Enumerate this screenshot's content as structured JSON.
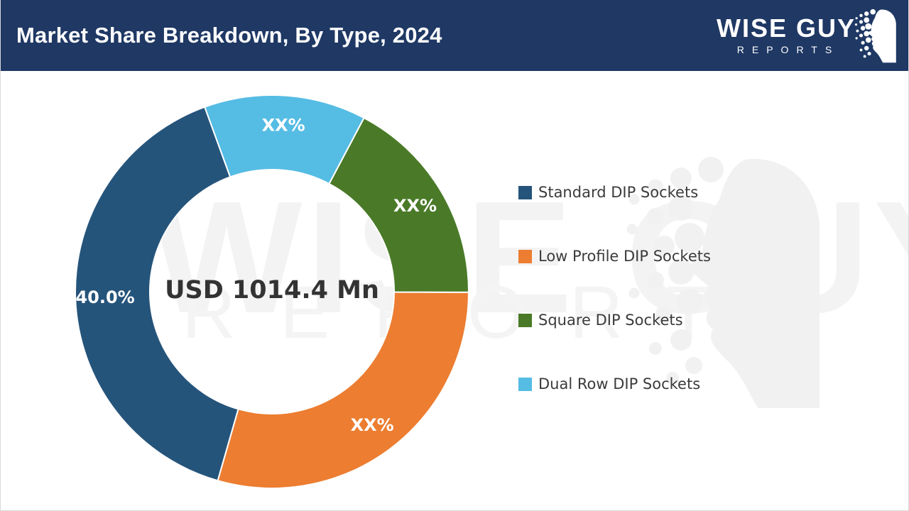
{
  "header": {
    "title": "Market Share Breakdown, By Type, 2024",
    "bg_color": "#1F3864",
    "logo": {
      "line1": "WISE GUY",
      "line2": "REPORTS"
    }
  },
  "chart_data": {
    "type": "pie",
    "subtype": "donut",
    "title": "Market Share Breakdown, By Type, 2024",
    "center_label": "USD 1014.4 Mn",
    "start_angle_deg": 110,
    "direction": "counterclockwise",
    "legend_position": "right",
    "categories": [
      "Standard DIP Sockets",
      "Low Profile DIP Sockets",
      "Square DIP Sockets",
      "Dual Row DIP Sockets"
    ],
    "values_pct": [
      40.0,
      29.4,
      17.3,
      13.3
    ],
    "slice_labels": [
      "40.0%",
      "XX%",
      "XX%",
      "XX%"
    ],
    "colors": [
      "#25547B",
      "#EC7D31",
      "#4A7A28",
      "#55BCE4"
    ],
    "slice_label_color": "#ffffff",
    "center_label_color": "#333333"
  },
  "watermark": {
    "line1": "WISE GUY",
    "line2": "REPORTS"
  }
}
